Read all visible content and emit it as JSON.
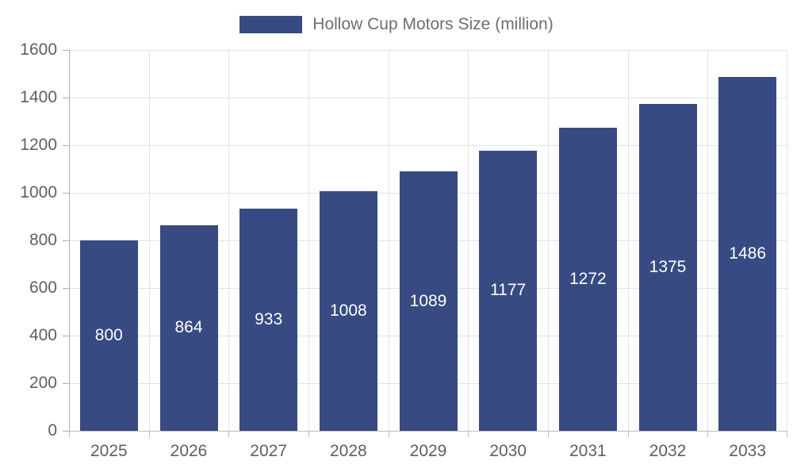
{
  "chart_data": {
    "type": "bar",
    "title": "Hollow Cup Motors Size (million)",
    "categories": [
      "2025",
      "2026",
      "2027",
      "2028",
      "2029",
      "2030",
      "2031",
      "2032",
      "2033"
    ],
    "values": [
      800,
      864,
      933,
      1008,
      1089,
      1177,
      1272,
      1375,
      1486
    ],
    "xlabel": "",
    "ylabel": "",
    "ylim": [
      0,
      1600
    ],
    "ytick_interval": 200,
    "yticks": [
      0,
      200,
      400,
      600,
      800,
      1000,
      1200,
      1400,
      1600
    ],
    "grid": true,
    "legend_position": "top-center",
    "value_labels": "inside-center",
    "colors": {
      "bar": "#374a81",
      "value_label": "#ffffff",
      "axis_text": "#5f5f5f",
      "legend_text": "#6e6e6e",
      "gridline": "#e2e2e2",
      "axis_line": "#aeaeae"
    }
  }
}
